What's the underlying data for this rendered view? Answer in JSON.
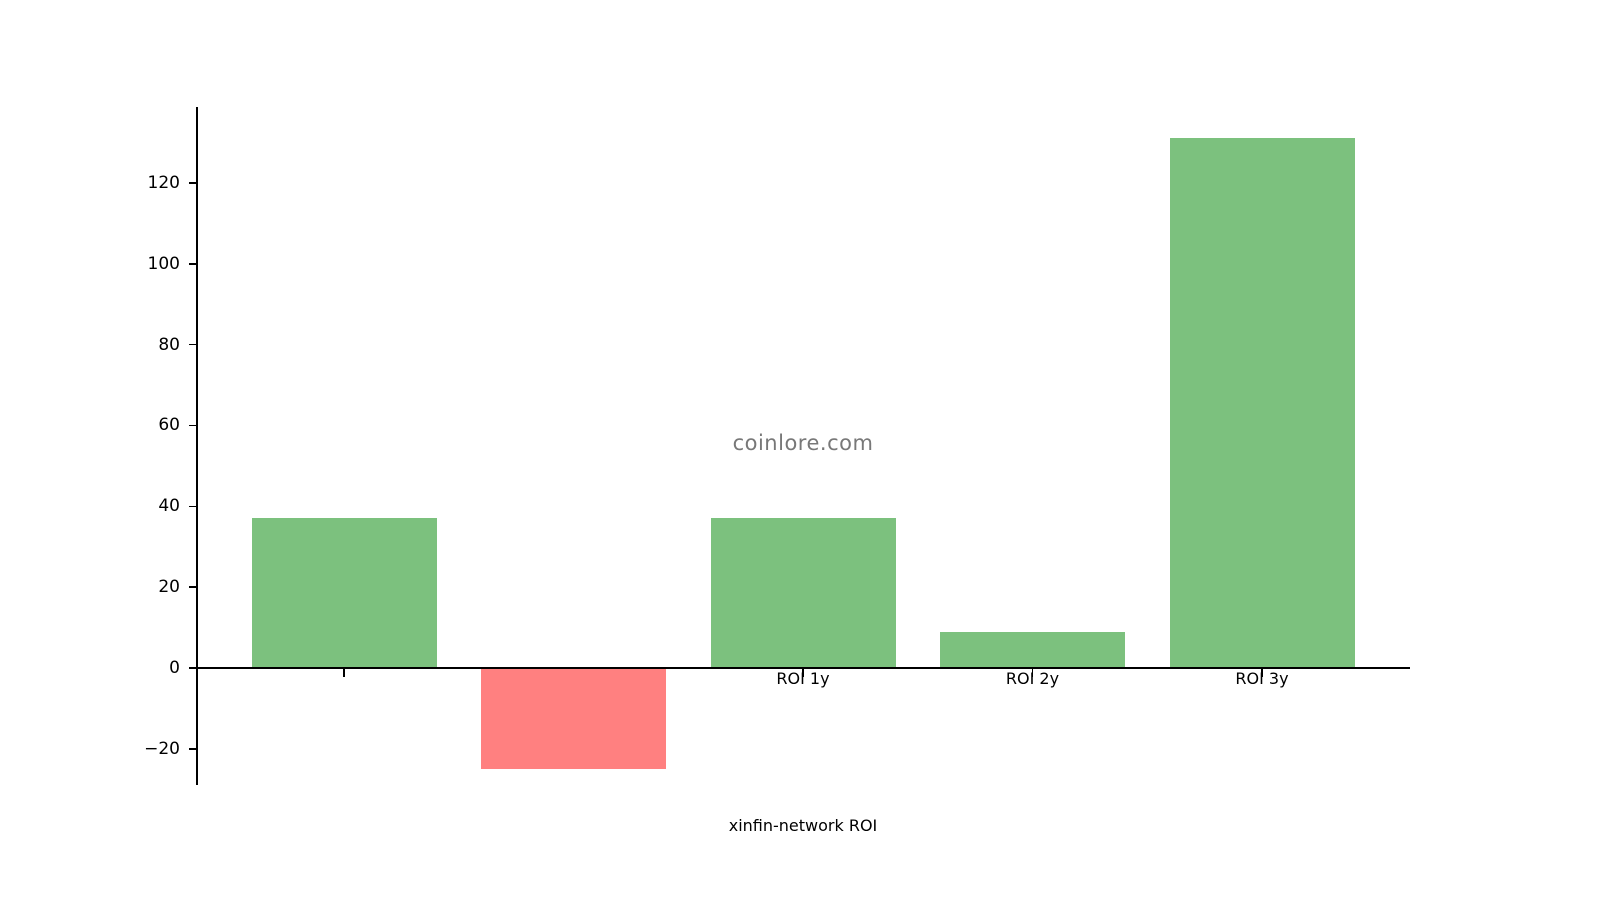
{
  "chart_data": {
    "type": "bar",
    "categories": [
      "",
      "",
      "ROI 1y",
      "ROI 2y",
      "ROI 3y"
    ],
    "values": [
      37,
      -25,
      37,
      9,
      131
    ],
    "title": "",
    "xlabel": "xinfin-network ROI",
    "ylabel": "",
    "yticks": [
      -20,
      0,
      20,
      40,
      60,
      80,
      100,
      120
    ],
    "ylim": [
      -29,
      139
    ],
    "xlim_note": "5 bars, no gridlines, no legend, left and zero-line spines only",
    "grid": false,
    "legend": null,
    "watermark": "coinlore.com",
    "watermark_color": "#787878",
    "positive_color": "#7cc17e",
    "negative_color": "#ff8080",
    "axis_color": "#000000"
  }
}
